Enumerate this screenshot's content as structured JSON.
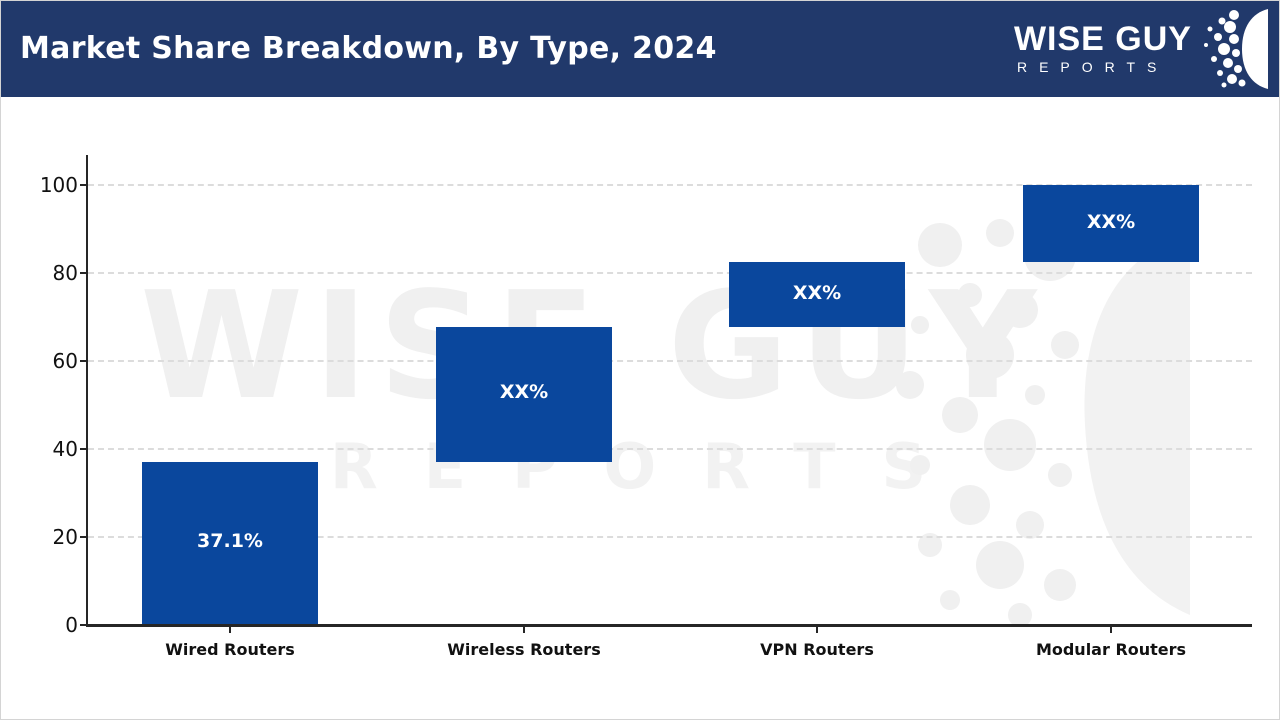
{
  "header": {
    "title": "Market Share Breakdown, By Type, 2024",
    "bg_color": "#21396B",
    "logo": {
      "line1": "WISE GUY",
      "line2": "REPORTS"
    }
  },
  "watermark": {
    "line1": "WISE GUY",
    "line2": "REPORTS"
  },
  "chart_data": {
    "type": "bar",
    "subtype": "waterfall-stacked-market-share",
    "title": "Market Share Breakdown, By Type, 2024",
    "categories": [
      "Wired Routers",
      "Wireless Routers",
      "VPN Routers",
      "Modular Routers"
    ],
    "series": [
      {
        "name": "Market Share",
        "segments": [
          {
            "category": "Wired Routers",
            "start": 0,
            "end": 37.1,
            "value": 37.1,
            "label": "37.1%"
          },
          {
            "category": "Wireless Routers",
            "start": 37.1,
            "end": 67.8,
            "value": 30.7,
            "label": "XX%"
          },
          {
            "category": "VPN Routers",
            "start": 67.8,
            "end": 82.4,
            "value": 14.6,
            "label": "XX%"
          },
          {
            "category": "Modular Routers",
            "start": 82.4,
            "end": 100,
            "value": 17.6,
            "label": "XX%"
          }
        ]
      }
    ],
    "xlabel": "",
    "ylabel": "",
    "ylim": [
      0,
      100
    ],
    "yticks": [
      0,
      20,
      40,
      60,
      80,
      100
    ],
    "grid": "horizontal-dashed",
    "legend": "none",
    "bar_color": "#0A479D",
    "bar_label_color": "#ffffff",
    "axis_color": "#262626",
    "grid_color": "#dcdcdc"
  }
}
